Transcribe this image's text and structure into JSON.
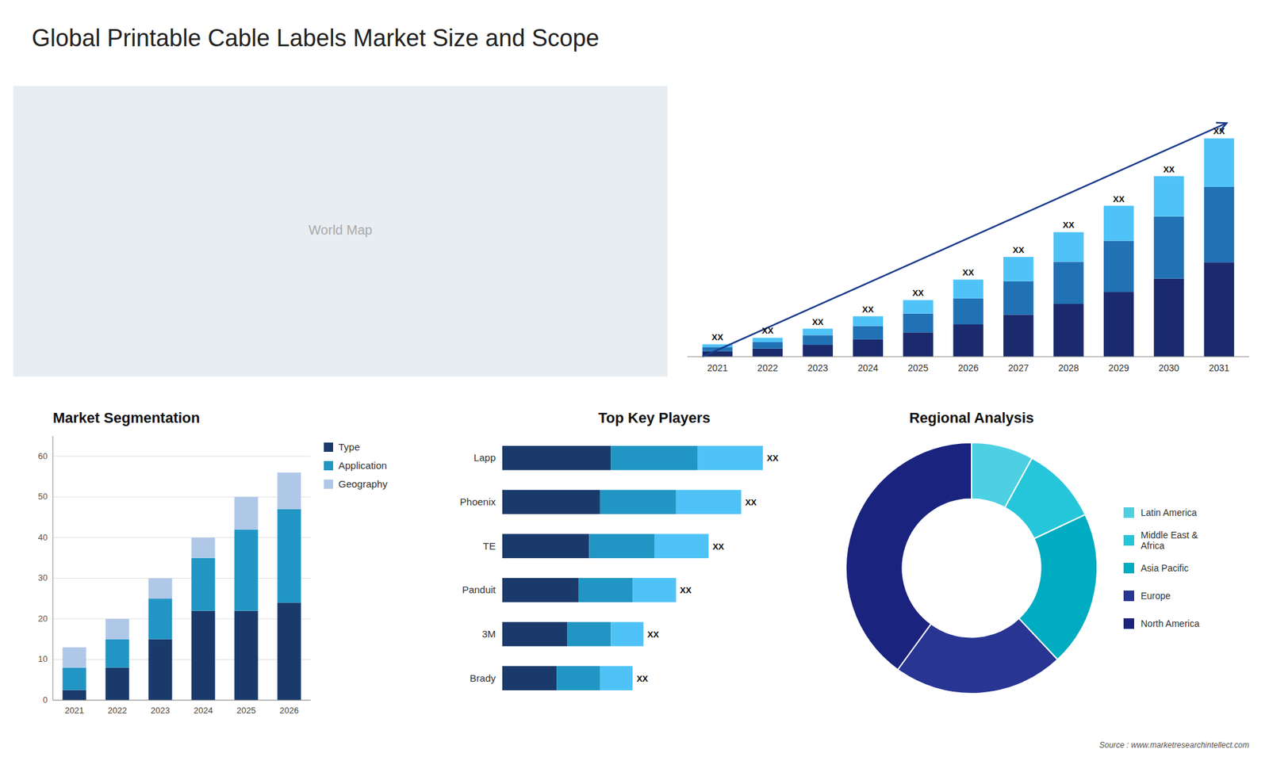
{
  "title": "Global Printable Cable Labels Market Size and Scope",
  "source": "Source : www.marketresearchintellect.com",
  "chart_data": [
    {
      "type": "map",
      "title": "World Map"
    },
    {
      "type": "bar",
      "stacked": true,
      "color": "#1a3a8c",
      "categories": [
        "2021",
        "2022",
        "2023",
        "2024",
        "2025",
        "2026",
        "2027",
        "2028",
        "2029",
        "2030",
        "2031"
      ],
      "series": [
        {
          "color": "#1a2a6c",
          "values": [
            1,
            1.5,
            2.2,
            3.2,
            4.5,
            6.0,
            7.8,
            9.8,
            12.0,
            14.5,
            17.5
          ]
        },
        {
          "color": "#2171b5",
          "values": [
            0.8,
            1.2,
            1.8,
            2.5,
            3.5,
            4.8,
            6.2,
            7.8,
            9.5,
            11.5,
            14.0
          ]
        },
        {
          "color": "#4fc3f7",
          "values": [
            0.5,
            0.8,
            1.2,
            1.8,
            2.5,
            3.5,
            4.5,
            5.5,
            6.5,
            7.5,
            9.0
          ]
        }
      ],
      "annotations": [
        "XX",
        "XX",
        "XX",
        "XX",
        "XX",
        "XX",
        "XX",
        "XX",
        "XX",
        "XX",
        "XX"
      ],
      "ylim": [
        0,
        47.79
      ],
      "tick_labels": "x",
      "grid": false
    },
    {
      "type": "bar",
      "stacked": true,
      "title": "Market Segmentation",
      "categories": [
        "2021",
        "2022",
        "2023",
        "2024",
        "2025",
        "2026"
      ],
      "series": [
        {
          "name": "Type",
          "color": "#1a3a6c",
          "values": [
            2.5,
            8,
            15,
            22,
            22,
            24
          ]
        },
        {
          "name": "Application",
          "color": "#2196c4",
          "values": [
            5.5,
            7,
            10,
            13,
            20,
            23
          ]
        },
        {
          "name": "Geography",
          "color": "#b0c8e8",
          "values": [
            5,
            5,
            5,
            5,
            8,
            9
          ]
        }
      ],
      "ylim": [
        0,
        65
      ],
      "yticks": [
        0,
        10,
        20,
        30,
        40,
        50,
        60
      ],
      "grid": true,
      "legend": "right"
    },
    {
      "type": "bar",
      "stacked": true,
      "orientation": "horizontal",
      "title": "Top Key Players",
      "categories": [
        "Lapp",
        "Phoenix",
        "TE",
        "Panduit",
        "3M",
        "Brady"
      ],
      "series": [
        {
          "color": "#1a3a6c",
          "values": [
            5,
            4.5,
            4,
            3.5,
            3,
            2.5
          ]
        },
        {
          "color": "#2196c4",
          "values": [
            4,
            3.5,
            3,
            2.5,
            2,
            2
          ]
        },
        {
          "color": "#4fc3f7",
          "values": [
            3,
            3,
            2.5,
            2,
            1.5,
            1.5
          ]
        }
      ],
      "annotations": [
        "XX",
        "XX",
        "XX",
        "XX",
        "XX",
        "XX"
      ],
      "xlim": [
        0,
        14
      ],
      "tick_labels": "y",
      "grid": false
    },
    {
      "type": "pie",
      "title": "Regional Analysis",
      "categories": [
        "Latin America",
        "Middle East &\nAfrica",
        "Asia Pacific",
        "Europe",
        "North America"
      ],
      "values": [
        8,
        10,
        20,
        22,
        40
      ],
      "colors": [
        "#4dd0e1",
        "#26c6da",
        "#00acc1",
        "#283593",
        "#1a237e"
      ],
      "legend": "right"
    }
  ]
}
